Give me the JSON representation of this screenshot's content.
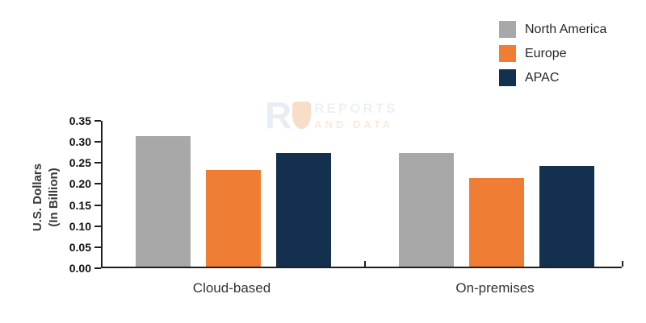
{
  "chart_data": {
    "type": "bar",
    "categories": [
      "Cloud-based",
      "On-premises"
    ],
    "series": [
      {
        "name": "North America",
        "color": "#a8a8a8",
        "values": [
          0.31,
          0.27
        ]
      },
      {
        "name": "Europe",
        "color": "#ef7d33",
        "values": [
          0.23,
          0.21
        ]
      },
      {
        "name": "APAC",
        "color": "#13304e",
        "values": [
          0.27,
          0.24
        ]
      }
    ],
    "title": "",
    "xlabel": "",
    "ylabel": "U.S. Dollars (In Billion)",
    "ylabel_line1": "U.S. Dollars",
    "ylabel_line2": "(In Billion)",
    "ylim": [
      0,
      0.35
    ],
    "ytick_step": 0.05,
    "ytick_labels": [
      "0.35",
      "0.30",
      "0.25",
      "0.20",
      "0.15",
      "0.10",
      "0.05",
      "0.00"
    ],
    "legend_position": "top-right",
    "grid": false,
    "axis_color": "#1f1f1f"
  },
  "watermark": {
    "letter": "R",
    "line1": "REPORTS",
    "line2": "AND DATA",
    "shield_color": "#f8ddc9"
  }
}
